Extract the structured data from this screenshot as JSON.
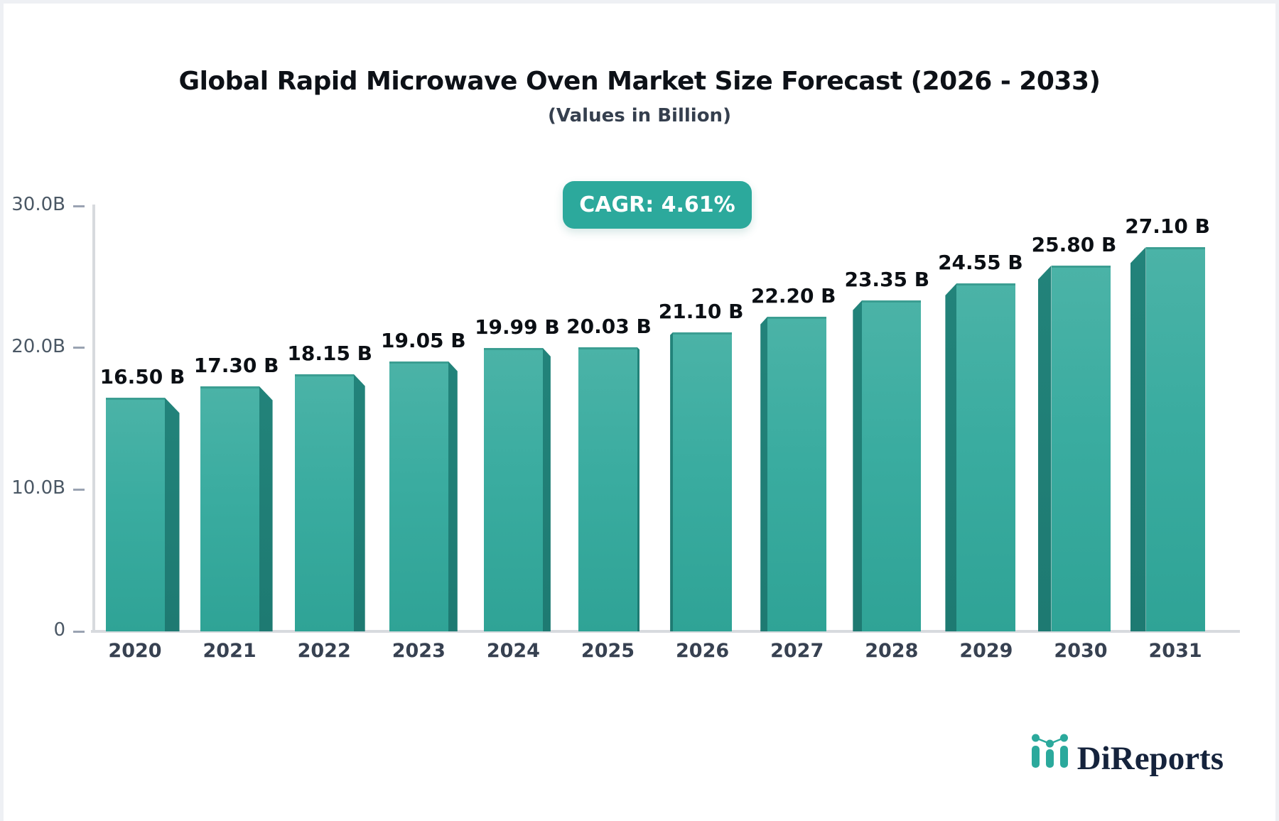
{
  "chart_data": {
    "type": "bar",
    "title": "Global Rapid Microwave Oven Market Size Forecast (2026 - 2033)",
    "subtitle": "(Values in Billion)",
    "badge_label": "CAGR: 4.61%",
    "categories": [
      "2020",
      "2021",
      "2022",
      "2023",
      "2024",
      "2025",
      "2026",
      "2027",
      "2028",
      "2029",
      "2030",
      "2031"
    ],
    "values": [
      16.5,
      17.3,
      18.15,
      19.05,
      19.99,
      20.03,
      21.1,
      22.2,
      23.35,
      24.55,
      25.8,
      27.1
    ],
    "value_labels": [
      "16.50 B",
      "17.30 B",
      "18.15 B",
      "19.05 B",
      "19.99 B",
      "20.03 B",
      "21.10 B",
      "22.20 B",
      "23.35 B",
      "24.55 B",
      "25.80 B",
      "27.10 B"
    ],
    "y_ticks": [
      {
        "value": 30,
        "label": "30.0B"
      },
      {
        "value": 20,
        "label": "20.0B"
      },
      {
        "value": 10,
        "label": "10.0B"
      },
      {
        "value": 0,
        "label": "0"
      }
    ],
    "ylim": [
      0,
      30
    ],
    "grid": "off",
    "legend": "none",
    "colors": {
      "bar_face_top": "#4bb3a7",
      "bar_face_bottom": "#2fa396",
      "bar_side": "#1e7a72",
      "axis_line": "#d7dade",
      "tick_text": "#4b5865",
      "category_text": "#374151",
      "value_text": "#0b0f14",
      "badge_background": "#2ca99c",
      "badge_text": "#ffffff",
      "title_text": "#0d1117",
      "logo_navy": "#15233c",
      "logo_teal": "#2ba99c"
    }
  },
  "branding": {
    "logo_text": "DiReports",
    "logo_icon": "bar-chart-trend-icon"
  }
}
